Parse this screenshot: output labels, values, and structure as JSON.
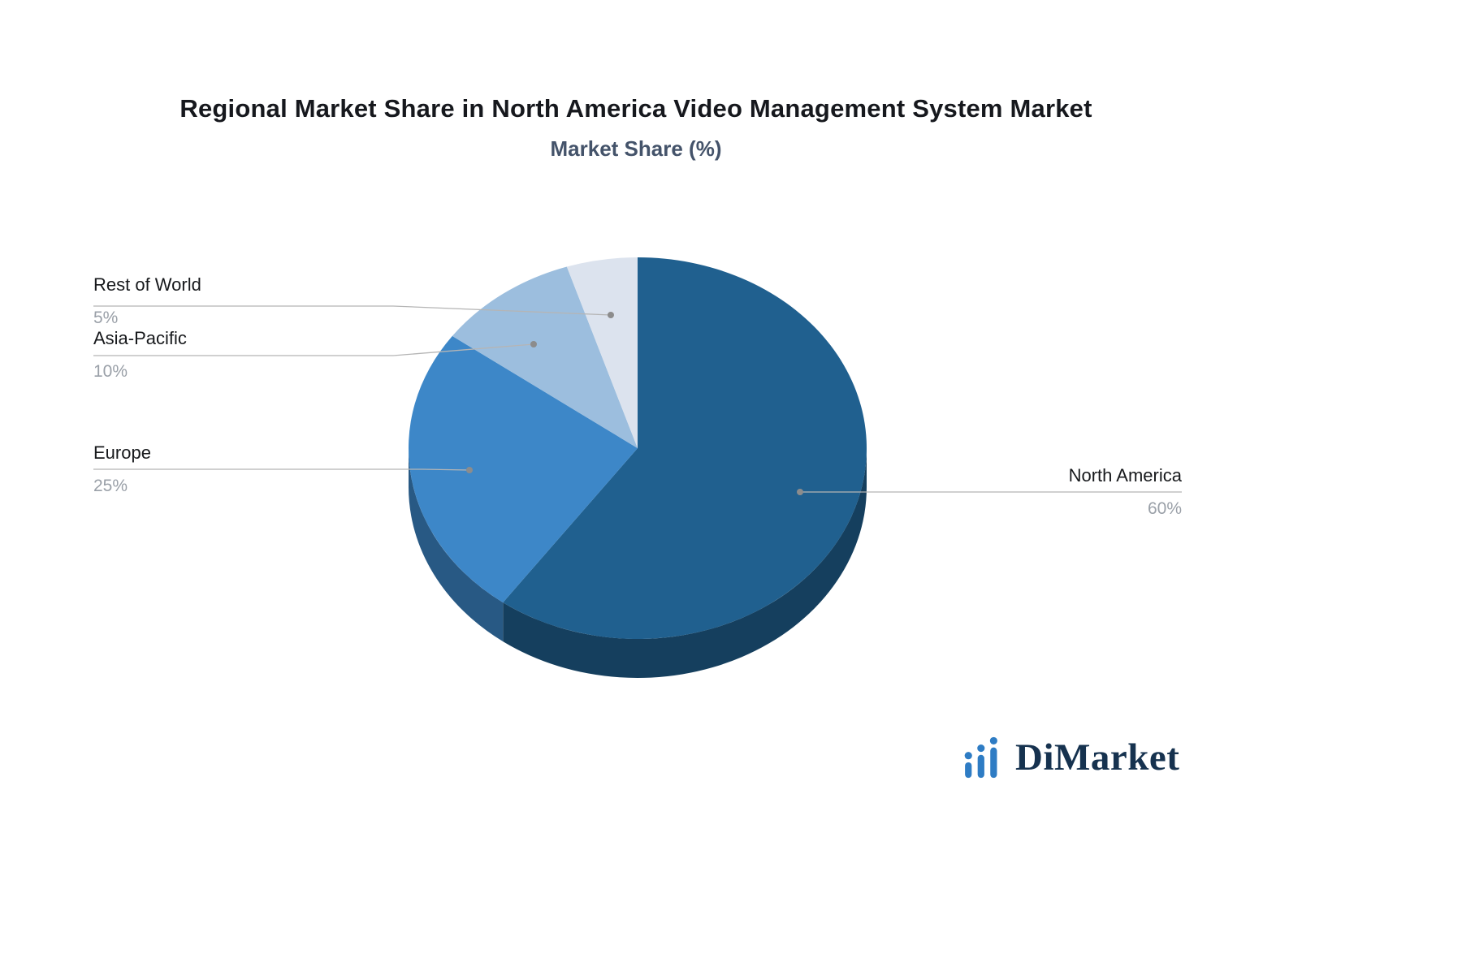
{
  "chart_data": {
    "type": "pie",
    "is_3d": true,
    "title": "Regional Market Share in North America Video Management System Market",
    "subtitle": "Market Share (%)",
    "unit": "%",
    "direction": "clockwise",
    "start_angle_deg": 0,
    "legend": false,
    "categories": [
      "North America",
      "Europe",
      "Asia-Pacific",
      "Rest of World"
    ],
    "values": [
      60,
      25,
      10,
      5
    ],
    "points": [
      {
        "label": "North America",
        "value": 60,
        "pct_label": "60%",
        "color": "#20608f"
      },
      {
        "label": "Europe",
        "value": 25,
        "pct_label": "25%",
        "color": "#3d87c8"
      },
      {
        "label": "Asia-Pacific",
        "value": 10,
        "pct_label": "10%",
        "color": "#9cbede"
      },
      {
        "label": "Rest of World",
        "value": 5,
        "pct_label": "5%",
        "color": "#dce3ee"
      }
    ]
  },
  "logo": {
    "text": "DiMarket",
    "icon": "bar-chart-icon",
    "text_color": "#16324f",
    "icon_color": "#2e7cc4"
  }
}
